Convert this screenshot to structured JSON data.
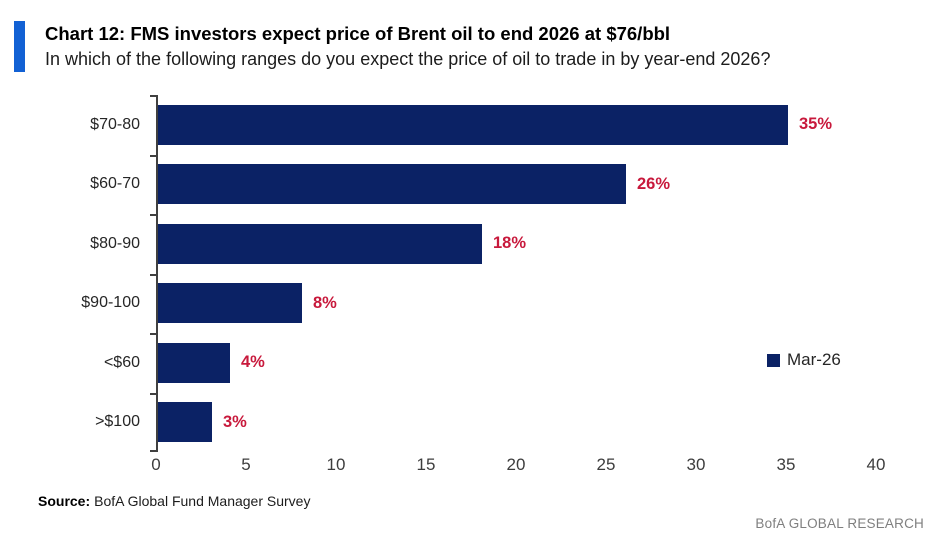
{
  "header": {
    "title": "Chart 12: FMS investors expect price of Brent oil to end 2026 at $76/bbl",
    "subtitle": "In which of the following ranges do you expect the price of oil to trade in by year-end 2026?"
  },
  "chart_data": {
    "type": "bar",
    "orientation": "horizontal",
    "title": "Chart 12: FMS investors expect price of Brent oil to end 2026 at $76/bbl",
    "subtitle": "In which of the following ranges do you expect the price of oil to trade in by year-end 2026?",
    "categories": [
      "$70-80",
      "$60-70",
      "$80-90",
      "$90-100",
      "<$60",
      ">$100"
    ],
    "series": [
      {
        "name": "Mar-26",
        "values": [
          35,
          26,
          18,
          8,
          4,
          3
        ]
      }
    ],
    "value_labels": [
      "35%",
      "26%",
      "18%",
      "8%",
      "4%",
      "3%"
    ],
    "xlim": [
      0,
      40
    ],
    "x_ticks": [
      0,
      5,
      10,
      15,
      20,
      25,
      30,
      35,
      40
    ],
    "grid": false,
    "legend_position": "right-middle",
    "colors": {
      "bar": "#0B2265",
      "value_label": "#C8193C",
      "axis": "#404040",
      "accent_bar": "#1261D4"
    }
  },
  "footer": {
    "source_label": "Source:",
    "source_text": "BofA Global Fund Manager Survey",
    "brand": "BofA GLOBAL RESEARCH"
  }
}
